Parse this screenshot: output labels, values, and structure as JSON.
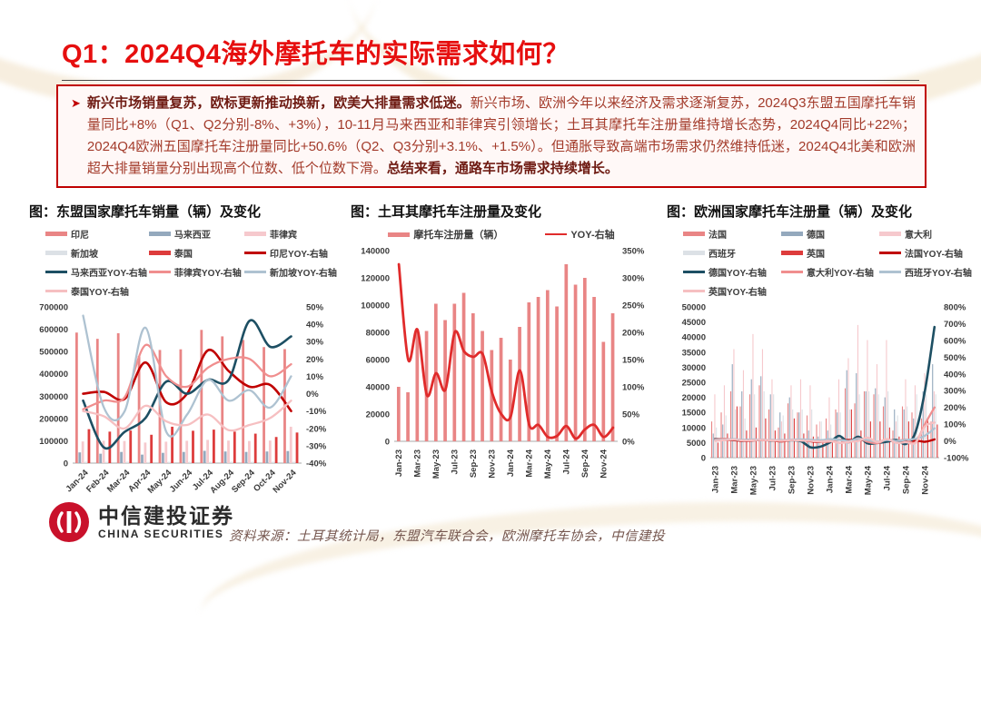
{
  "slide": {
    "title": "Q1：2024Q4海外摩托车的实际需求如何？"
  },
  "summary_box": {
    "bullet": "➤",
    "segments": [
      {
        "bold": true,
        "text": "新兴市场销量复苏，欧标更新推动换新，欧美大排量需求低迷。"
      },
      {
        "bold": false,
        "text": "新兴市场、欧洲今年以来经济及需求逐渐复苏，2024Q3东盟五国摩托车销量同比+8%（Q1、Q2分别-8%、+3%），10-11月马来西亚和菲律宾引领增长；土耳其摩托车注册量维持增长态势，2024Q4同比+22%；2024Q4欧洲五国摩托车注册量同比+50.6%（Q2、Q3分别+3.1%、+1.5%）。但通胀导致高端市场需求仍然维持低迷，2024Q4北美和欧洲超大排量销量分别出现高个位数、低个位数下滑。"
      },
      {
        "bold": true,
        "text": "总结来看，通路车市场需求持续增长。"
      }
    ]
  },
  "chart_data": [
    {
      "type": "bar+line",
      "title": "图：东盟国家摩托车销量（辆）及变化",
      "categories": [
        "Jan-24",
        "Feb-24",
        "Mar-24",
        "Apr-24",
        "May-24",
        "Jun-24",
        "Jul-24",
        "Aug-24",
        "Sep-24",
        "Oct-24",
        "Nov-24"
      ],
      "left_axis": {
        "min": 0,
        "max": 700000,
        "step": 100000
      },
      "right_axis": {
        "min": -40,
        "max": 50,
        "step": 10,
        "suffix": "%"
      },
      "x_label_rotate": 45,
      "x_label_every": 1,
      "bar_span": 0.74,
      "bar_series": [
        {
          "name": "印尼",
          "color": "#E98585",
          "values": [
            585000,
            557000,
            582000,
            480000,
            507000,
            510000,
            597000,
            568000,
            552000,
            520000,
            511000
          ]
        },
        {
          "name": "马来西亚",
          "color": "#94A9BD",
          "values": [
            48000,
            42000,
            50000,
            38000,
            46000,
            50000,
            55000,
            52000,
            50000,
            52000,
            54000
          ]
        },
        {
          "name": "菲律宾",
          "color": "#F6C9CD",
          "values": [
            97000,
            100000,
            99000,
            92000,
            96000,
            100000,
            104000,
            101000,
            99000,
            101000,
            163000
          ]
        },
        {
          "name": "新加坡",
          "color": "#DCE1E6",
          "values": [
            6000,
            5500,
            6000,
            5000,
            5800,
            6000,
            6200,
            6000,
            5900,
            6000,
            6100
          ]
        },
        {
          "name": "泰国",
          "color": "#DD3C3C",
          "values": [
            152000,
            141000,
            146000,
            127000,
            163000,
            145000,
            150000,
            141000,
            132000,
            117000,
            137000
          ]
        }
      ],
      "line_series": [
        {
          "name": "印尼YOY-右轴",
          "color": "#C00000",
          "width": 2.6,
          "values": [
            0,
            1,
            -3,
            18,
            -5,
            0,
            25,
            13,
            4,
            5,
            -10
          ]
        },
        {
          "name": "马来西亚YOY-右轴",
          "color": "#1D4F63",
          "width": 2.6,
          "values": [
            -4,
            -31,
            -22,
            -14,
            7,
            0,
            8,
            8,
            42,
            27,
            33
          ]
        },
        {
          "name": "菲律宾YOY-右轴",
          "color": "#F08E8E",
          "width": 2.3,
          "values": [
            -9,
            -4,
            -2,
            28,
            10,
            4,
            15,
            20,
            20,
            10,
            17
          ]
        },
        {
          "name": "新加坡YOY-右轴",
          "color": "#AEC2D1",
          "width": 2.3,
          "values": [
            45,
            -8,
            -10,
            38,
            -22,
            -12,
            8,
            -4,
            2,
            -8,
            10
          ]
        },
        {
          "name": "泰国YOY-右轴",
          "color": "#F6BFC1",
          "width": 2.3,
          "values": [
            -10,
            -13,
            -20,
            -7,
            -16,
            -18,
            -12,
            -21,
            -18,
            -14,
            -4
          ]
        }
      ]
    },
    {
      "type": "bar+line",
      "title": "图：土耳其摩托车注册量及变化",
      "categories": [
        "Jan-23",
        "Feb-23",
        "Mar-23",
        "Apr-23",
        "May-23",
        "Jun-23",
        "Jul-23",
        "Aug-23",
        "Sep-23",
        "Oct-23",
        "Nov-23",
        "Dec-23",
        "Jan-24",
        "Feb-24",
        "Mar-24",
        "Apr-24",
        "May-24",
        "Jun-24",
        "Jul-24",
        "Aug-24",
        "Sep-24",
        "Oct-24",
        "Nov-24",
        "Dec-24"
      ],
      "left_axis": {
        "min": 0,
        "max": 140000,
        "step": 20000
      },
      "right_axis": {
        "min": 0,
        "max": 350,
        "step": 50,
        "suffix": "%"
      },
      "x_label_rotate": 90,
      "x_label_every": 2,
      "bar_span": 0.42,
      "bar_series": [
        {
          "name": "摩托车注册量（辆）",
          "color": "#E98585",
          "values": [
            40000,
            36000,
            82000,
            81000,
            101000,
            89000,
            101000,
            109000,
            94000,
            81000,
            67000,
            76000,
            60000,
            84000,
            102000,
            106000,
            111000,
            99000,
            130000,
            115000,
            120000,
            106000,
            73000,
            94000
          ]
        }
      ],
      "line_series": [
        {
          "name": "YOY-右轴",
          "color": "#E02B2B",
          "width": 2.8,
          "values": [
            325,
            150,
            205,
            85,
            125,
            95,
            200,
            165,
            155,
            160,
            90,
            50,
            45,
            130,
            30,
            30,
            8,
            10,
            28,
            5,
            22,
            30,
            8,
            25
          ]
        }
      ]
    },
    {
      "type": "bar+line",
      "title": "图：欧洲国家摩托车注册量（辆）及变化",
      "categories": [
        "Jan-23",
        "Feb-23",
        "Mar-23",
        "Apr-23",
        "May-23",
        "Jun-23",
        "Jul-23",
        "Aug-23",
        "Sep-23",
        "Oct-23",
        "Nov-23",
        "Dec-23",
        "Jan-24",
        "Feb-24",
        "Mar-24",
        "Apr-24",
        "May-24",
        "Jun-24",
        "Jul-24",
        "Aug-24",
        "Sep-24",
        "Oct-24",
        "Nov-24",
        "Dec-24"
      ],
      "left_axis": {
        "min": 0,
        "max": 50000,
        "step": 5000
      },
      "right_axis": {
        "min": -100,
        "max": 800,
        "step": 100,
        "suffix": "%"
      },
      "x_label_rotate": 90,
      "x_label_every": 2,
      "bar_span": 0.82,
      "bar_series": [
        {
          "name": "法国",
          "color": "#E98585",
          "values": [
            12000,
            15000,
            22000,
            17000,
            21000,
            24000,
            16000,
            10000,
            18000,
            15000,
            14000,
            11000,
            13000,
            16000,
            23000,
            18000,
            22000,
            21000,
            17000,
            9000,
            17000,
            15000,
            13000,
            12000
          ]
        },
        {
          "name": "德国",
          "color": "#94A9BD",
          "values": [
            8000,
            11000,
            31000,
            22000,
            26000,
            27000,
            21000,
            15000,
            20000,
            15000,
            9000,
            7000,
            9000,
            15000,
            29000,
            28000,
            22000,
            23000,
            20000,
            16000,
            16000,
            13000,
            22000,
            31000
          ]
        },
        {
          "name": "意大利",
          "color": "#F6C9CD",
          "values": [
            21000,
            24000,
            36000,
            29000,
            41000,
            36000,
            26000,
            12000,
            24000,
            26000,
            24000,
            12000,
            20000,
            26000,
            33000,
            44000,
            39000,
            31000,
            39000,
            12000,
            26000,
            24000,
            28000,
            22000
          ]
        },
        {
          "name": "西班牙",
          "color": "#DCE1E6",
          "values": [
            10000,
            14000,
            16000,
            13000,
            21000,
            22000,
            21000,
            14000,
            16000,
            16000,
            16000,
            12000,
            11000,
            15000,
            16000,
            21000,
            22000,
            21000,
            22000,
            14000,
            17000,
            21000,
            21000,
            21000
          ]
        },
        {
          "name": "英国",
          "color": "#DD3C3C",
          "values": [
            5000,
            8000,
            17000,
            9000,
            10000,
            13000,
            9000,
            8000,
            13000,
            8000,
            7000,
            5000,
            5000,
            7000,
            16000,
            9000,
            12000,
            12000,
            10000,
            7000,
            12000,
            7000,
            13000,
            11000
          ]
        }
      ],
      "line_series": [
        {
          "name": "法国YOY-右轴",
          "color": "#C00000",
          "width": 2.4,
          "values": [
            10,
            7,
            4,
            0,
            3,
            6,
            2,
            -3,
            5,
            3,
            -2,
            -6,
            6,
            7,
            5,
            6,
            4,
            -12,
            5,
            -8,
            -6,
            2,
            -5,
            9
          ]
        },
        {
          "name": "德国YOY-右轴",
          "color": "#1D4F63",
          "width": 2.6,
          "values": [
            12,
            10,
            8,
            4,
            6,
            5,
            3,
            2,
            4,
            -2,
            -38,
            -35,
            -10,
            30,
            -8,
            25,
            -15,
            -12,
            -5,
            5,
            -18,
            50,
            300,
            680
          ]
        },
        {
          "name": "意大利YOY-右轴",
          "color": "#F08E8E",
          "width": 2.3,
          "values": [
            10,
            12,
            8,
            5,
            6,
            4,
            3,
            0,
            5,
            6,
            4,
            -5,
            -4,
            8,
            -8,
            15,
            -5,
            -14,
            8,
            0,
            8,
            -8,
            100,
            200
          ]
        },
        {
          "name": "西班牙YOY-右轴",
          "color": "#AEC2D1",
          "width": 2.3,
          "values": [
            5,
            8,
            10,
            6,
            9,
            7,
            6,
            5,
            8,
            9,
            7,
            4,
            10,
            7,
            0,
            12,
            5,
            -5,
            5,
            0,
            6,
            12,
            31,
            75
          ]
        },
        {
          "name": "英国YOY-右轴",
          "color": "#F6BFC1",
          "width": 2.3,
          "values": [
            0,
            5,
            8,
            2,
            4,
            6,
            3,
            1,
            5,
            2,
            0,
            -4,
            0,
            -12,
            -6,
            0,
            20,
            -8,
            11,
            -12,
            -8,
            -12,
            86,
            110
          ]
        }
      ]
    }
  ],
  "footer": {
    "logo_cn": "中信建投证券",
    "logo_en": "CHINA SECURITIES",
    "source": "资料来源：土耳其统计局，东盟汽车联合会，欧洲摩托车协会，中信建投"
  }
}
